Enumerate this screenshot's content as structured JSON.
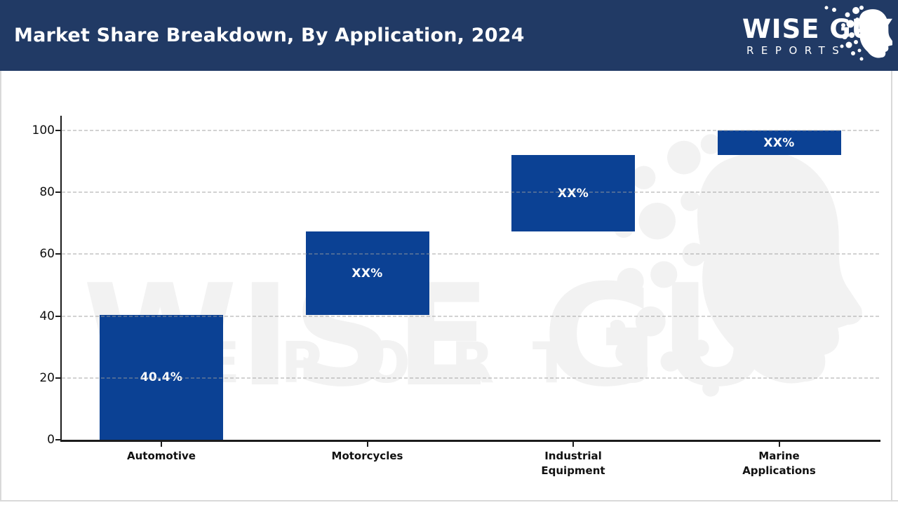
{
  "header": {
    "title": "Market Share Breakdown, By Application, 2024",
    "bg_color": "#213a65",
    "logo": {
      "line1": "WISE GUY",
      "line2": "REPORTS"
    }
  },
  "watermark": {
    "line1": "WISE GU",
    "line2": "REPORTS"
  },
  "chart_data": {
    "type": "bar",
    "subtype": "waterfall",
    "title": "Market Share Breakdown, By Application, 2024",
    "xlabel": "",
    "ylabel": "",
    "ylim": [
      0,
      105
    ],
    "yticks": [
      0,
      20,
      40,
      60,
      80,
      100
    ],
    "grid": "horizontal-dashed, drawn above bars",
    "legend": "none",
    "bar_color": "#0b4194",
    "categories": [
      "Automotive",
      "Motorcycles",
      "Industrial Equipment",
      "Marine Applications"
    ],
    "category_label_lines": [
      [
        "Automotive"
      ],
      [
        "Motorcycles"
      ],
      [
        "Industrial",
        "Equipment"
      ],
      [
        "Marine",
        "Applications"
      ]
    ],
    "segments": [
      {
        "category": "Automotive",
        "start": 0,
        "end": 40.4,
        "label": "40.4%"
      },
      {
        "category": "Motorcycles",
        "start": 40.4,
        "end": 67.3,
        "label": "XX%"
      },
      {
        "category": "Industrial Equipment",
        "start": 67.3,
        "end": 92.0,
        "label": "XX%"
      },
      {
        "category": "Marine Applications",
        "start": 92.0,
        "end": 100,
        "label": "XX%"
      }
    ]
  }
}
